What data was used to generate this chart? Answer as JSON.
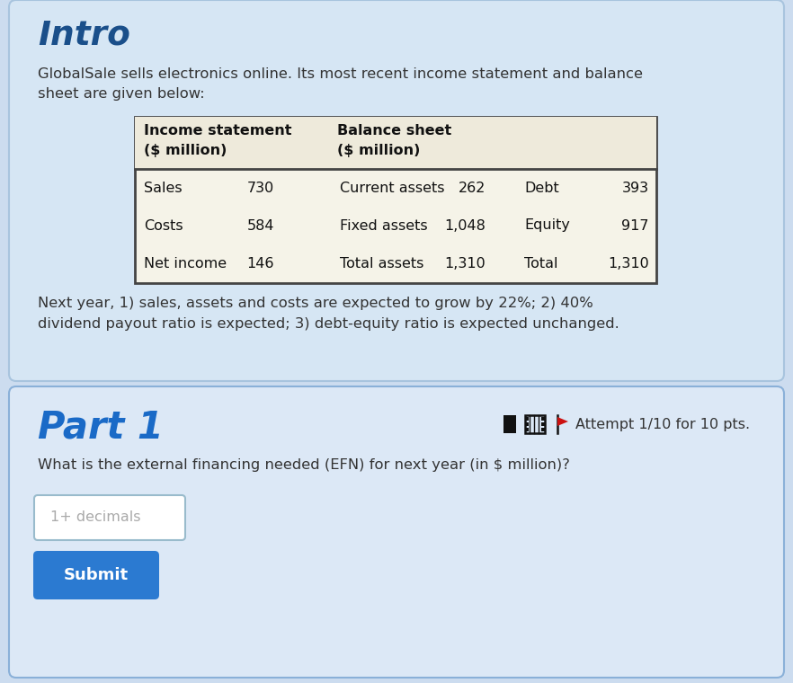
{
  "bg_color": "#ccdcef",
  "panel1_bg": "#d6e6f4",
  "panel2_bg": "#dce8f6",
  "panel1_edge": "#a8c4de",
  "panel2_edge": "#8ab0d8",
  "title1": "Intro",
  "title1_color": "#1a4f8a",
  "intro_text1": "GlobalSale sells electronics online. Its most recent income statement and balance",
  "intro_text2": "sheet are given below:",
  "table_header_bg": "#eeeadb",
  "table_body_bg": "#f5f3e8",
  "table_border_color": "#444444",
  "income_rows": [
    [
      "Sales",
      "730"
    ],
    [
      "Costs",
      "584"
    ],
    [
      "Net income",
      "146"
    ]
  ],
  "balance_rows": [
    [
      "Current assets",
      "262",
      "Debt",
      "393"
    ],
    [
      "Fixed assets",
      "1,048",
      "Equity",
      "917"
    ],
    [
      "Total assets",
      "1,310",
      "Total",
      "1,310"
    ]
  ],
  "footer_text1": "Next year, 1) sales, assets and costs are expected to grow by 22%; 2) 40%",
  "footer_text2": "dividend payout ratio is expected; 3) debt-equity ratio is expected unchanged.",
  "title2": "Part 1",
  "title2_color": "#1a6ac7",
  "attempt_text": "Attempt 1/10 for 10 pts.",
  "part1_question": "What is the external financing needed (EFN) for next year (in $ million)?",
  "input_placeholder": "1+ decimals",
  "submit_label": "Submit",
  "submit_bg": "#2b7ad1",
  "submit_text_color": "#ffffff"
}
